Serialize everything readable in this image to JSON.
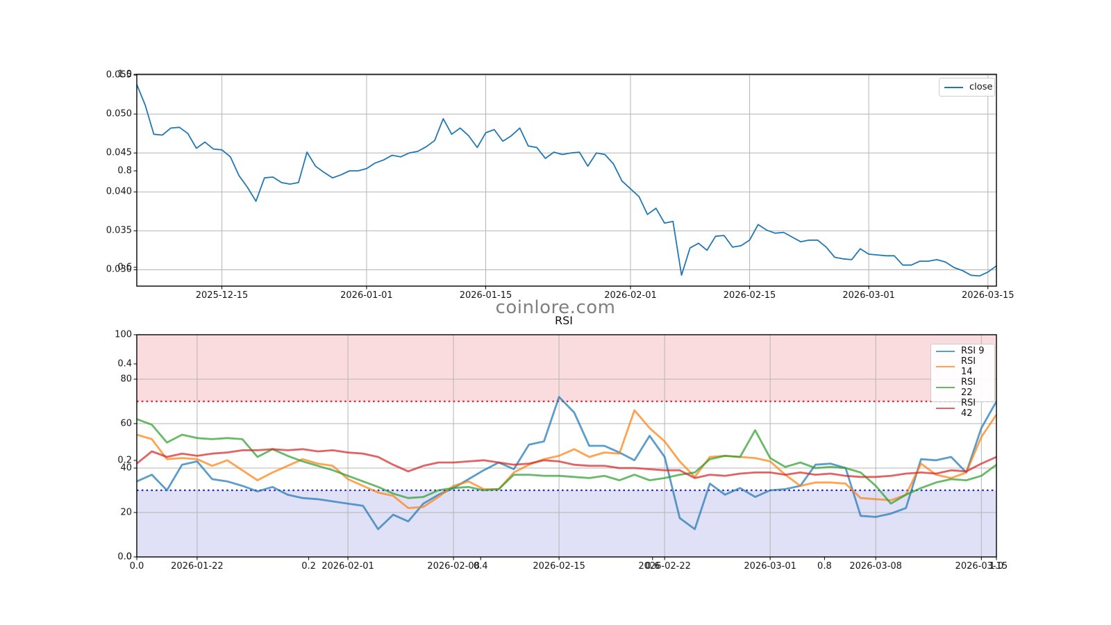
{
  "watermark": "coinlore.com",
  "rsi_title": "RSI",
  "colors": {
    "spine": "#000000",
    "grid": "#b4b4b4",
    "text": "#151515",
    "watermark": "#7f7f7f",
    "legend_border": "#cccccc",
    "overbought_band": "#fbdcde",
    "oversold_band": "#e0e0f6",
    "overbought_line": "#dc2834",
    "oversold_line": "#2424c8"
  },
  "overlay_axis": {
    "x_ticks": [
      "0.0",
      "0.2",
      "0.4",
      "0.6",
      "0.8",
      "1.0"
    ],
    "y_ticks": [
      "0.0",
      "0.2",
      "0.4",
      "0.6",
      "0.8",
      "1.0"
    ]
  },
  "chart_data": [
    {
      "type": "line",
      "title": "",
      "legend_position": "upper right",
      "ylim": [
        0.0279,
        0.0551
      ],
      "y_ticks": [
        {
          "label": "0.030",
          "v": 0.03
        },
        {
          "label": "0.035",
          "v": 0.035
        },
        {
          "label": "0.040",
          "v": 0.04
        },
        {
          "label": "0.045",
          "v": 0.045
        },
        {
          "label": "0.050",
          "v": 0.05
        },
        {
          "label": "0.055",
          "v": 0.055
        }
      ],
      "x_ticks": [
        {
          "label": "2025-12-15",
          "f": 0.099
        },
        {
          "label": "2026-01-01",
          "f": 0.2673
        },
        {
          "label": "2026-01-15",
          "f": 0.4059
        },
        {
          "label": "2026-02-01",
          "f": 0.5743
        },
        {
          "label": "2026-02-15",
          "f": 0.7129
        },
        {
          "label": "2026-03-01",
          "f": 0.8515
        },
        {
          "label": "2026-03-15",
          "f": 0.9901
        }
      ],
      "series": [
        {
          "name": "close",
          "color": "#1f77b4",
          "values": [
            0.0538,
            0.0511,
            0.0474,
            0.0473,
            0.0482,
            0.0483,
            0.0475,
            0.0456,
            0.0464,
            0.0455,
            0.0454,
            0.0445,
            0.0421,
            0.0406,
            0.0388,
            0.0418,
            0.0419,
            0.0412,
            0.041,
            0.0412,
            0.0451,
            0.0433,
            0.0425,
            0.0418,
            0.0422,
            0.0427,
            0.0427,
            0.043,
            0.0437,
            0.0441,
            0.0447,
            0.0445,
            0.045,
            0.0452,
            0.0458,
            0.0466,
            0.0494,
            0.0474,
            0.0482,
            0.0472,
            0.0457,
            0.0476,
            0.048,
            0.0465,
            0.0472,
            0.0482,
            0.0459,
            0.0457,
            0.0443,
            0.0451,
            0.0448,
            0.045,
            0.0451,
            0.0433,
            0.045,
            0.0448,
            0.0436,
            0.0414,
            0.0404,
            0.0394,
            0.0371,
            0.0379,
            0.036,
            0.0362,
            0.0293,
            0.0328,
            0.0334,
            0.0325,
            0.0343,
            0.0344,
            0.0329,
            0.0331,
            0.0338,
            0.0358,
            0.0351,
            0.0347,
            0.0348,
            0.0342,
            0.0336,
            0.0338,
            0.0338,
            0.0329,
            0.0316,
            0.0314,
            0.0313,
            0.0327,
            0.032,
            0.0319,
            0.0318,
            0.0318,
            0.0306,
            0.0306,
            0.0311,
            0.0311,
            0.0313,
            0.031,
            0.0303,
            0.0299,
            0.0293,
            0.0292,
            0.0297,
            0.0305
          ]
        }
      ]
    },
    {
      "type": "line",
      "title": "RSI",
      "legend_position": "upper right",
      "ylim": [
        0,
        100
      ],
      "y_ticks": [
        {
          "label": "0",
          "v": 0
        },
        {
          "label": "20",
          "v": 20
        },
        {
          "label": "40",
          "v": 40
        },
        {
          "label": "60",
          "v": 60
        },
        {
          "label": "80",
          "v": 80
        },
        {
          "label": "100",
          "v": 100
        }
      ],
      "x_ticks": [
        {
          "label": "2026-01-22",
          "f": 0.0702
        },
        {
          "label": "2026-02-01",
          "f": 0.2456
        },
        {
          "label": "2026-02-08",
          "f": 0.3684
        },
        {
          "label": "2026-02-15",
          "f": 0.4912
        },
        {
          "label": "2026-02-22",
          "f": 0.614
        },
        {
          "label": "2026-03-01",
          "f": 0.7368
        },
        {
          "label": "2026-03-08",
          "f": 0.8596
        },
        {
          "label": "2026-03-15",
          "f": 0.9825
        }
      ],
      "bands": [
        {
          "from": 70,
          "to": 100,
          "color": "#fbdcde"
        },
        {
          "from": 0,
          "to": 30,
          "color": "#e0e0f6"
        }
      ],
      "hlines": [
        {
          "v": 70,
          "color": "#dc2834"
        },
        {
          "v": 30,
          "color": "#2424c8"
        }
      ],
      "series": [
        {
          "name": "RSI 9",
          "color": "#1f77b4",
          "values": [
            34,
            37,
            30,
            41.5,
            43,
            35,
            34,
            32,
            29.5,
            31.5,
            28,
            26.5,
            26,
            25,
            24,
            23,
            12.5,
            19,
            16,
            24,
            28,
            31,
            35,
            39,
            42.5,
            39.5,
            50.5,
            52,
            72,
            65,
            50,
            50,
            47,
            43.5,
            54.5,
            45,
            17.5,
            12.5,
            33,
            28,
            31,
            27,
            30,
            30.5,
            32,
            41.5,
            42,
            40,
            18.5,
            18,
            19.5,
            22,
            44,
            43.5,
            45,
            38,
            58,
            70
          ]
        },
        {
          "name": "RSI 14",
          "color": "#ff7f0e",
          "values": [
            55,
            53,
            44,
            44.5,
            44,
            41,
            43.5,
            39,
            34.5,
            38,
            41,
            44,
            42,
            41,
            35,
            32,
            29,
            27.5,
            22,
            22.5,
            27,
            32,
            34,
            30.5,
            30.5,
            38,
            41.5,
            44,
            45.5,
            48.5,
            45,
            47,
            46.5,
            66,
            58,
            52,
            43,
            36,
            45,
            45.5,
            45,
            44.5,
            43,
            37,
            32,
            33.5,
            33.5,
            33,
            26.5,
            26,
            25.5,
            28,
            42,
            37,
            35.5,
            38,
            54,
            64
          ]
        },
        {
          "name": "RSI 22",
          "color": "#2ca02c",
          "values": [
            62,
            59.5,
            51.5,
            55,
            53.5,
            53,
            53.5,
            53,
            45,
            48.5,
            45.5,
            43,
            41,
            39,
            36.5,
            34,
            31.5,
            28.5,
            26.5,
            27,
            30,
            31,
            31.5,
            30,
            30.5,
            37,
            37,
            36.5,
            36.5,
            36,
            35.5,
            36.5,
            34.5,
            37,
            34.5,
            35.5,
            37,
            38,
            44,
            45.5,
            45,
            57,
            44.5,
            40.5,
            42.5,
            40,
            40.5,
            40,
            38,
            32,
            24,
            28,
            31,
            33.5,
            35,
            34.5,
            36.5,
            41.5
          ]
        },
        {
          "name": "RSI 42",
          "color": "#d62728",
          "values": [
            42,
            47.5,
            45,
            46.5,
            45.5,
            46.5,
            47,
            48,
            48,
            48.5,
            48,
            48.5,
            47.5,
            48,
            47,
            46.5,
            45,
            41.5,
            38.5,
            41,
            42.5,
            42.5,
            43,
            43.5,
            42.5,
            41.5,
            42,
            43.5,
            43,
            41.5,
            41,
            41,
            40,
            40,
            39.5,
            39,
            39,
            35.5,
            37,
            36.5,
            37.5,
            38,
            38,
            37,
            38,
            37,
            37.5,
            36.5,
            36,
            36,
            36.5,
            37.5,
            38,
            37.5,
            39,
            38.5,
            42,
            45
          ]
        }
      ]
    }
  ]
}
